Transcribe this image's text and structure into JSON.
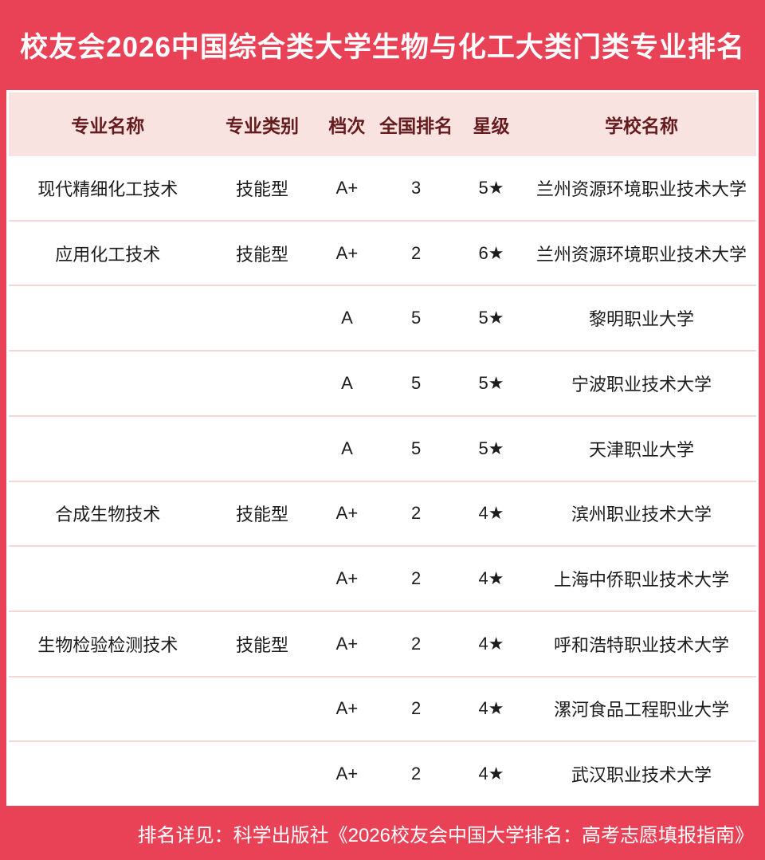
{
  "title": "校友会2026中国综合类大学生物与化工大类门类专业排名",
  "table": {
    "columns": [
      "专业名称",
      "专业类别",
      "档次",
      "全国排名",
      "星级",
      "学校名称"
    ],
    "rows": [
      [
        "现代精细化工技术",
        "技能型",
        "A+",
        "3",
        "5★",
        "兰州资源环境职业技术大学"
      ],
      [
        "应用化工技术",
        "技能型",
        "A+",
        "2",
        "6★",
        "兰州资源环境职业技术大学"
      ],
      [
        "",
        "",
        "A",
        "5",
        "5★",
        "黎明职业大学"
      ],
      [
        "",
        "",
        "A",
        "5",
        "5★",
        "宁波职业技术大学"
      ],
      [
        "",
        "",
        "A",
        "5",
        "5★",
        "天津职业大学"
      ],
      [
        "合成生物技术",
        "技能型",
        "A+",
        "2",
        "4★",
        "滨州职业技术大学"
      ],
      [
        "",
        "",
        "A+",
        "2",
        "4★",
        "上海中侨职业技术大学"
      ],
      [
        "生物检验检测技术",
        "技能型",
        "A+",
        "2",
        "4★",
        "呼和浩特职业技术大学"
      ],
      [
        "",
        "",
        "A+",
        "2",
        "4★",
        "漯河食品工程职业大学"
      ],
      [
        "",
        "",
        "A+",
        "2",
        "4★",
        "武汉职业技术大学"
      ]
    ]
  },
  "footer": {
    "note": "排名详见：科学出版社《2026校友会中国大学排名：高考志愿填报指南》"
  },
  "colors": {
    "brand_red": "#e94257",
    "header_bg": "#f8e3e0",
    "header_text": "#661c1e",
    "row_divider": "#f5d8d6",
    "body_text": "#1c1c1c",
    "title_text": "#ffffff"
  }
}
